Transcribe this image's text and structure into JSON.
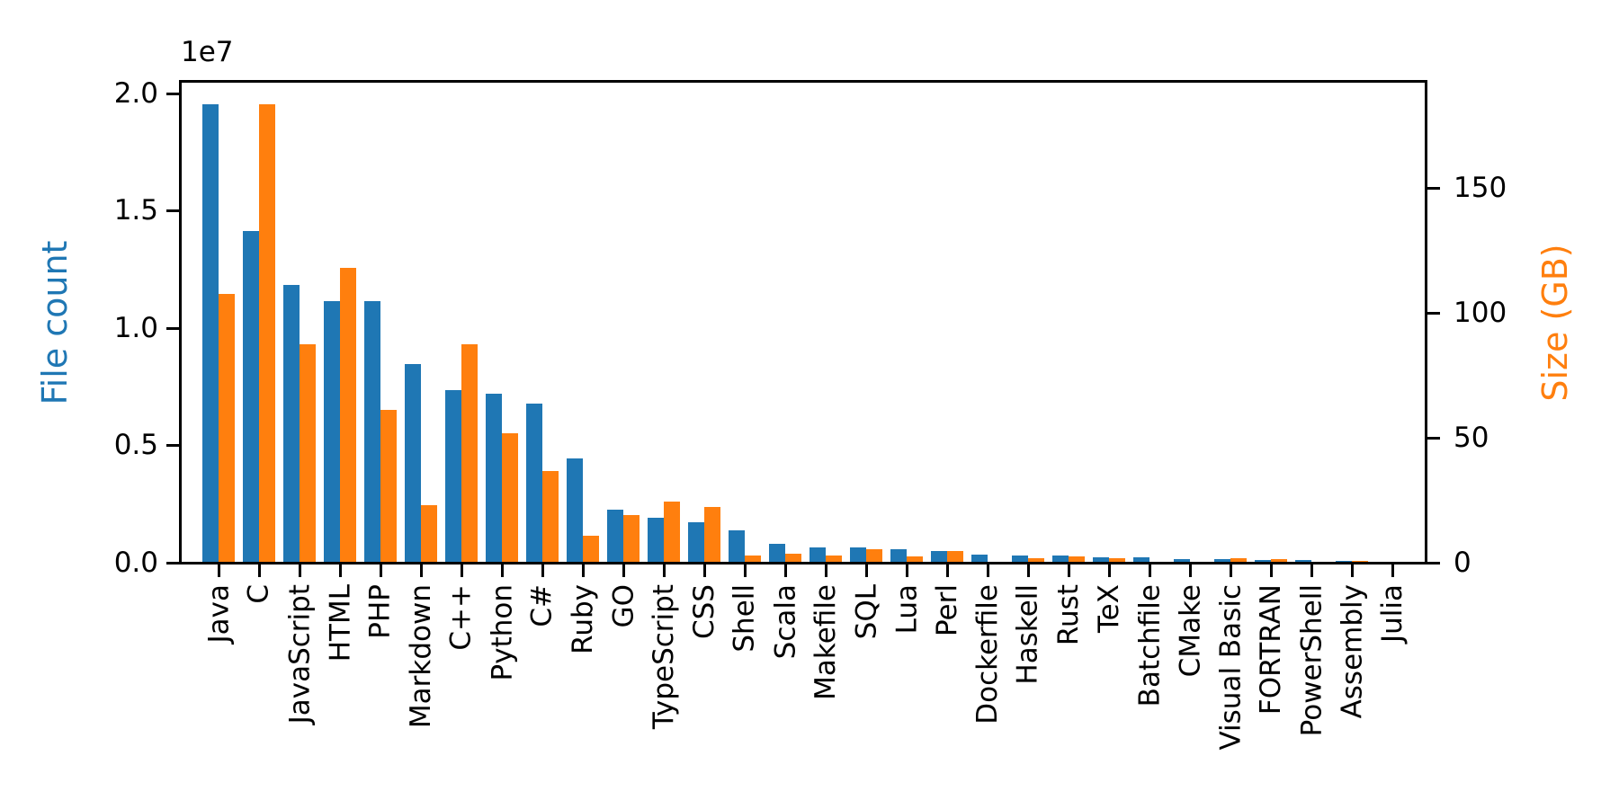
{
  "chart_data": {
    "type": "bar",
    "title": "",
    "xlabel": "",
    "grid": false,
    "legend": null,
    "categories": [
      "Java",
      "C",
      "JavaScript",
      "HTML",
      "PHP",
      "Markdown",
      "C++",
      "Python",
      "C#",
      "Ruby",
      "GO",
      "TypeScript",
      "CSS",
      "Shell",
      "Scala",
      "Makefile",
      "SQL",
      "Lua",
      "Perl",
      "Dockerfile",
      "Haskell",
      "Rust",
      "TeX",
      "Batchfile",
      "CMake",
      "Visual Basic",
      "FORTRAN",
      "PowerShell",
      "Assembly",
      "Julia"
    ],
    "series": [
      {
        "name": "File count",
        "axis": "left",
        "color": "#1f77b4",
        "values": [
          19548190,
          14143113,
          11839883,
          11178557,
          11177610,
          8464626,
          7380520,
          7226626,
          6811652,
          4473331,
          2265436,
          1940406,
          1734406,
          1385648,
          835755,
          679430,
          656671,
          578554,
          497949,
          366505,
          340623,
          322431,
          251015,
          236945,
          175282,
          155652,
          142038,
          136846,
          82905,
          58317
        ]
      },
      {
        "name": "Size (GB)",
        "axis": "right",
        "color": "#ff7f0e",
        "values": [
          107.7,
          183.83,
          87.82,
          118.12,
          61.41,
          23.09,
          87.73,
          52.03,
          36.83,
          10.95,
          19.28,
          24.59,
          22.67,
          3.01,
          3.87,
          2.92,
          5.67,
          2.81,
          4.7,
          0.71,
          1.85,
          2.68,
          2.15,
          0.7,
          0.54,
          1.91,
          1.62,
          0.69,
          0.78,
          0.29
        ]
      }
    ],
    "left_axis": {
      "label": "File count",
      "color": "#1f77b4",
      "offset_text": "1e7",
      "tick_labels": [
        "0.0",
        "0.5",
        "1.0",
        "1.5",
        "2.0"
      ],
      "tick_values": [
        0,
        5000000,
        10000000,
        15000000,
        20000000
      ],
      "ylim": [
        0,
        20525600
      ]
    },
    "right_axis": {
      "label": "Size (GB)",
      "color": "#ff7f0e",
      "tick_labels": [
        "0",
        "50",
        "100",
        "150"
      ],
      "tick_values": [
        0,
        50,
        100,
        150
      ],
      "ylim": [
        0,
        193.02
      ]
    },
    "spine_color": "#000000",
    "background_color": "#ffffff"
  }
}
